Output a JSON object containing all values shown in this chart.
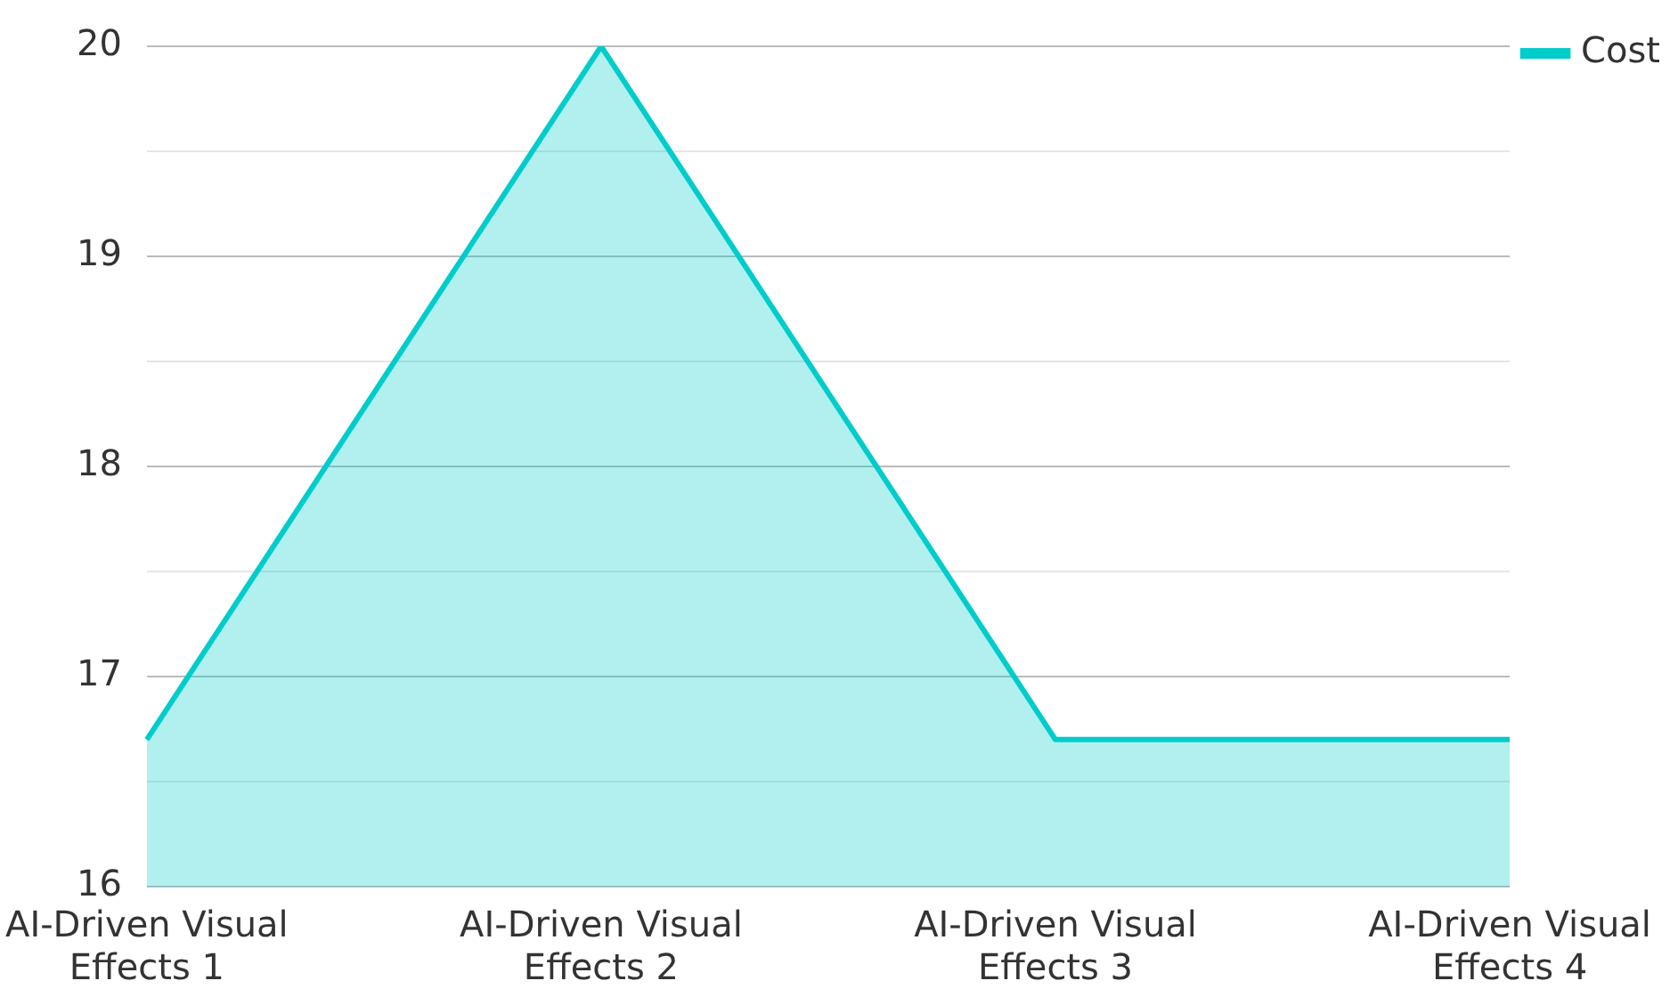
{
  "chart_data": {
    "type": "area",
    "categories": [
      "AI-Driven Visual Effects 1",
      "AI-Driven Visual Effects 2",
      "AI-Driven Visual Effects 3",
      "AI-Driven Visual Effects 4"
    ],
    "series": [
      {
        "name": "Cost",
        "color": "#00cccc",
        "values": [
          16.7,
          20,
          16.7,
          16.7
        ]
      }
    ],
    "ylim": [
      16,
      20
    ],
    "yticks": [
      16,
      {
        "value": 16.5,
        "label": null
      },
      17,
      {
        "value": 17.5,
        "label": null
      },
      18,
      {
        "value": 18.5,
        "label": null
      },
      19,
      {
        "value": 19.5,
        "label": null
      },
      20
    ],
    "grid": "y",
    "legend": "top right",
    "marker": "none"
  }
}
